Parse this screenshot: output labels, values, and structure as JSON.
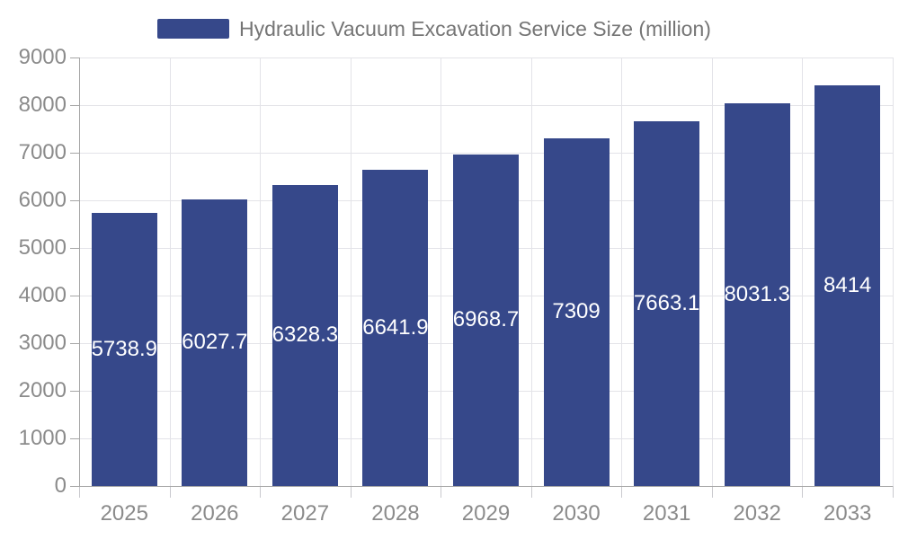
{
  "legend": {
    "label": "Hydraulic Vacuum Excavation Service Size (million)"
  },
  "chart_data": {
    "type": "bar",
    "title": "Hydraulic Vacuum Excavation Service Size (million)",
    "categories": [
      "2025",
      "2026",
      "2027",
      "2028",
      "2029",
      "2030",
      "2031",
      "2032",
      "2033"
    ],
    "values": [
      5738.9,
      6027.7,
      6328.3,
      6641.9,
      6968.7,
      7309,
      7663.1,
      8031.3,
      8414
    ],
    "value_labels": [
      "5738.9",
      "6027.7",
      "6328.3",
      "6641.9",
      "6968.7",
      "7309",
      "7663.1",
      "8031.3",
      "8414"
    ],
    "xlabel": "",
    "ylabel": "",
    "ylim": [
      0,
      9000
    ],
    "y_tick_labels": [
      "0",
      "1000",
      "2000",
      "3000",
      "4000",
      "5000",
      "6000",
      "7000",
      "8000",
      "9000"
    ],
    "grid": true,
    "legend_position": "top",
    "colors": {
      "bar": "#36488A",
      "value_label": "#FFFFFF",
      "axis_text": "#8B8B8B",
      "legend_text": "#757575",
      "gridline": "#E3E3E8",
      "axis_line": "#A6A6A6",
      "x_tick": "#C9C9CE"
    }
  }
}
